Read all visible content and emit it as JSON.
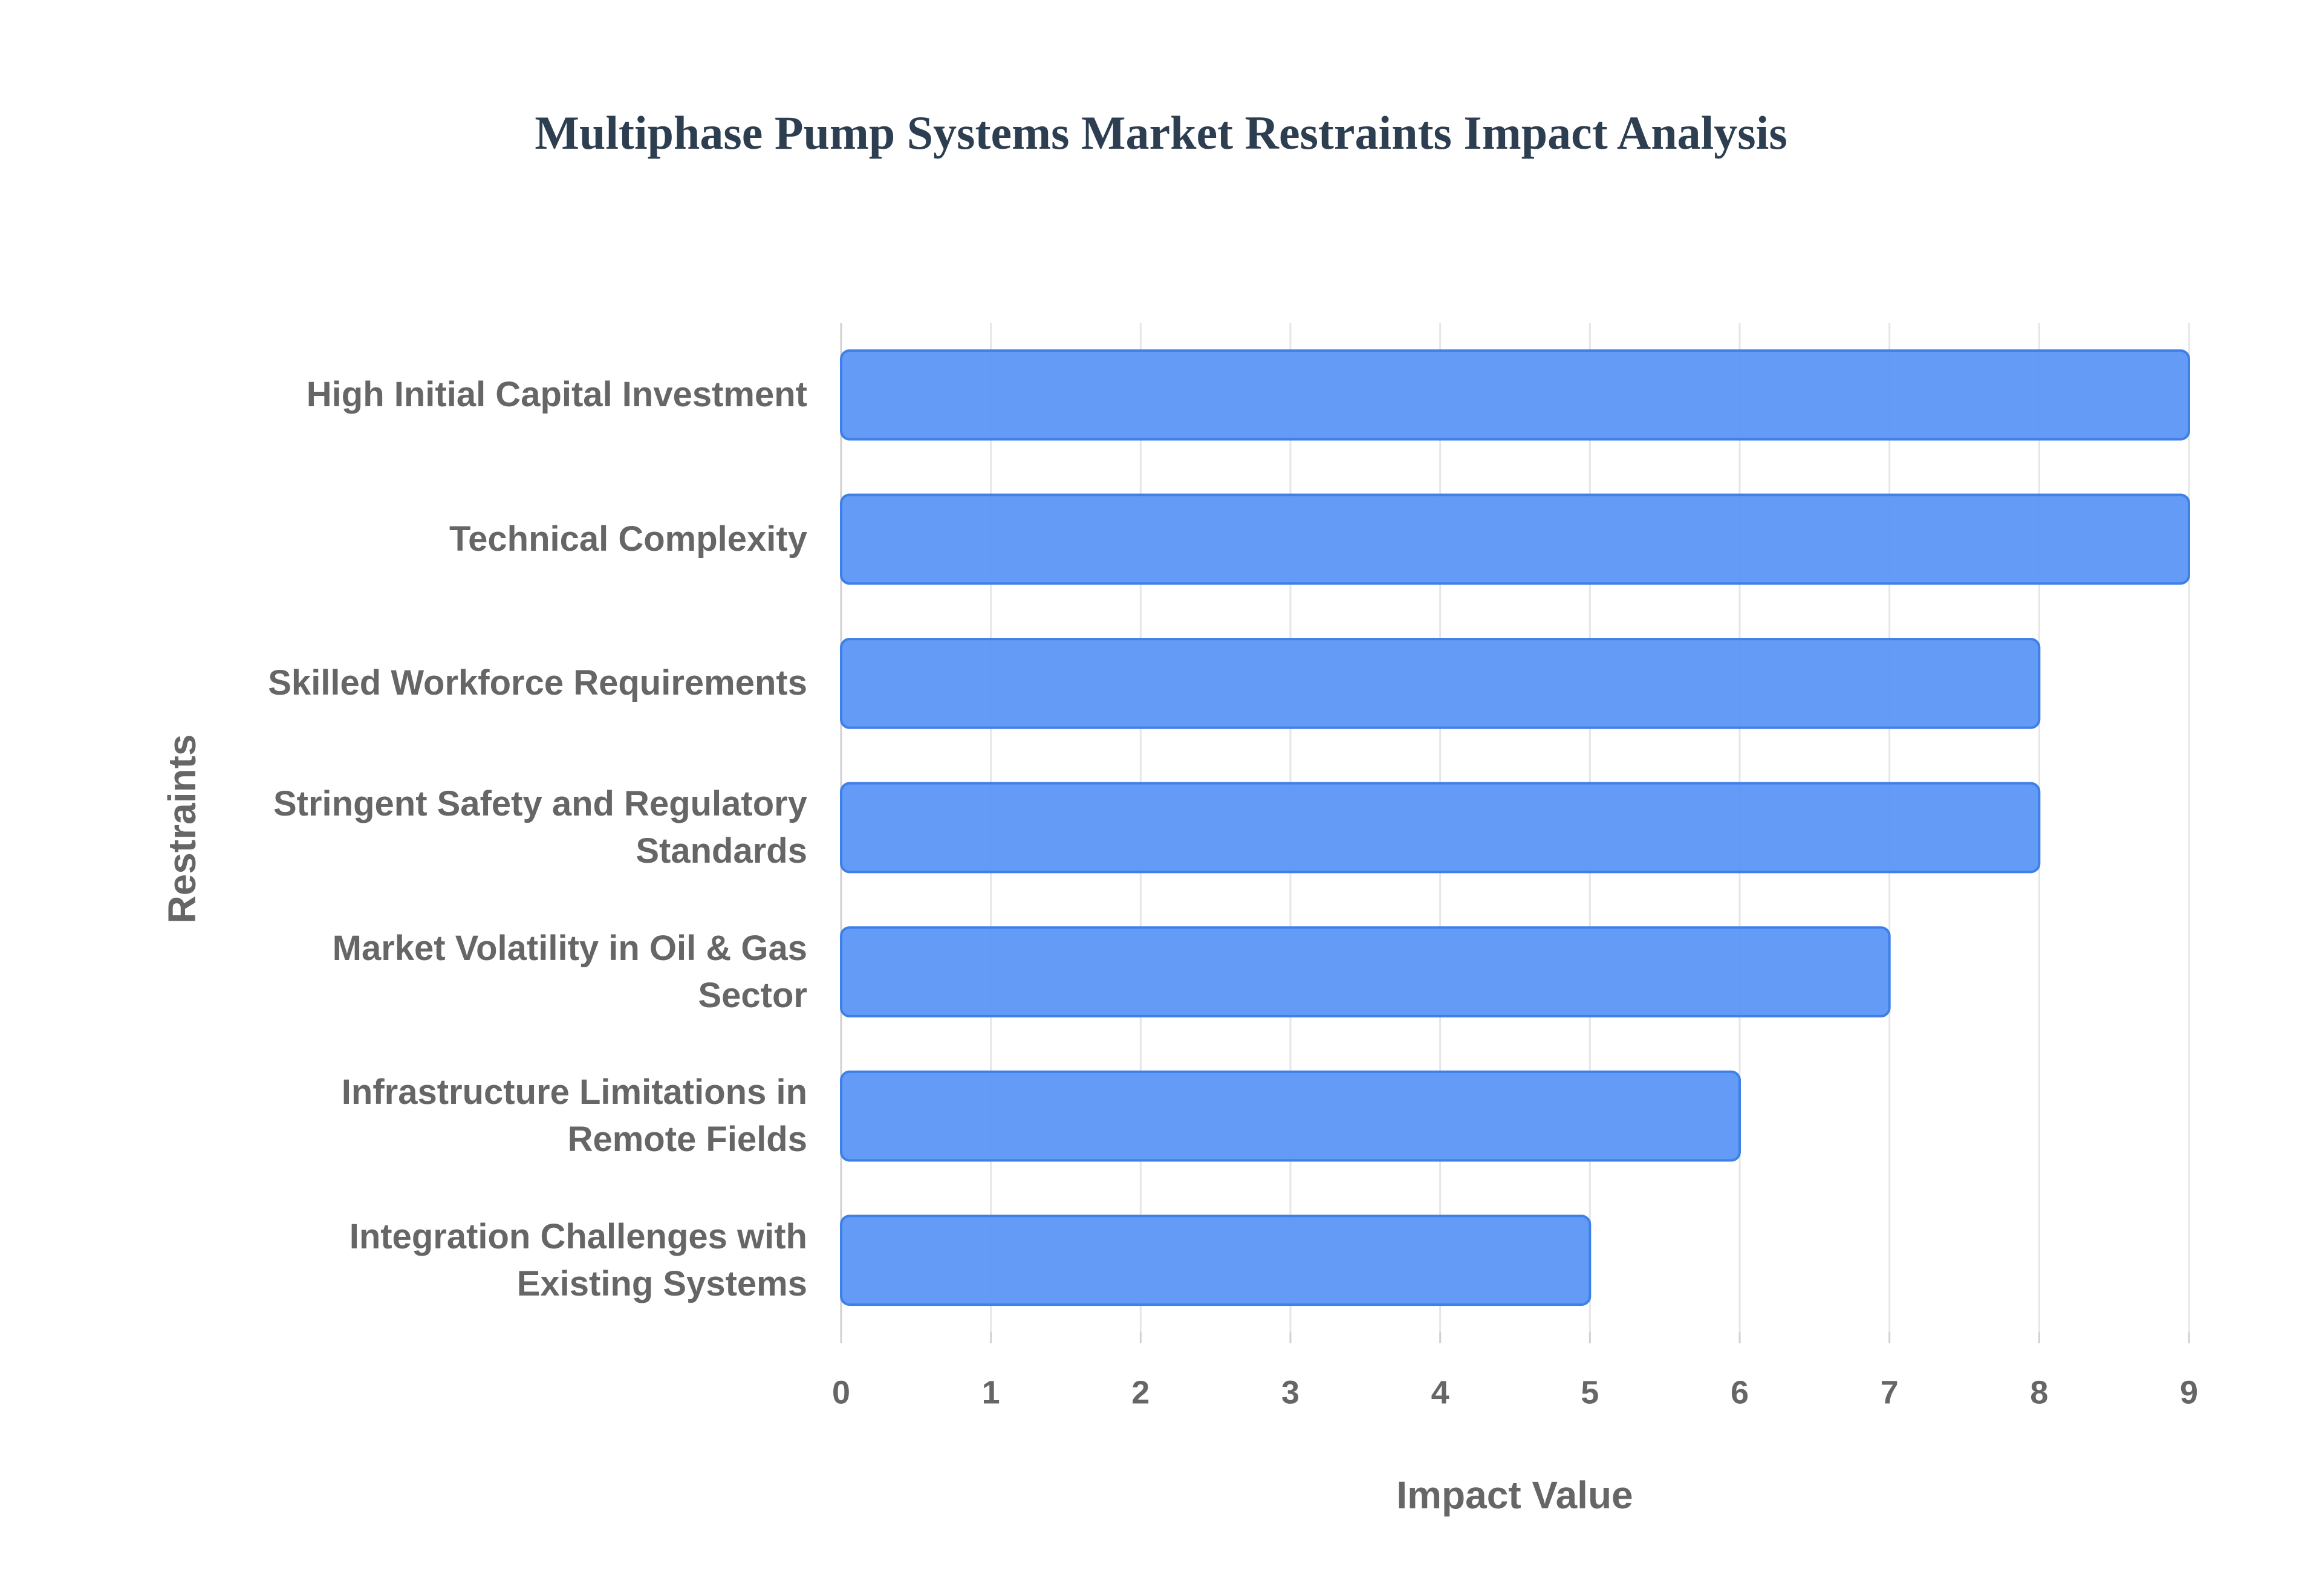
{
  "chart_data": {
    "type": "bar",
    "orientation": "horizontal",
    "title": "Multiphase Pump Systems Market Restraints Impact Analysis",
    "xlabel": "Impact Value",
    "ylabel": "Restraints",
    "categories": [
      "High Initial Capital Investment",
      "Technical Complexity",
      "Skilled Workforce Requirements",
      "Stringent Safety and Regulatory Standards",
      "Market Volatility in Oil & Gas Sector",
      "Infrastructure Limitations in Remote Fields",
      "Integration Challenges with Existing Systems"
    ],
    "values": [
      9,
      9,
      8,
      8,
      7,
      6,
      5
    ],
    "color": "#5b96f5",
    "xlim": [
      0,
      9
    ],
    "xticks": [
      0,
      1,
      2,
      3,
      4,
      5,
      6,
      7,
      8,
      9
    ],
    "grid": true
  }
}
